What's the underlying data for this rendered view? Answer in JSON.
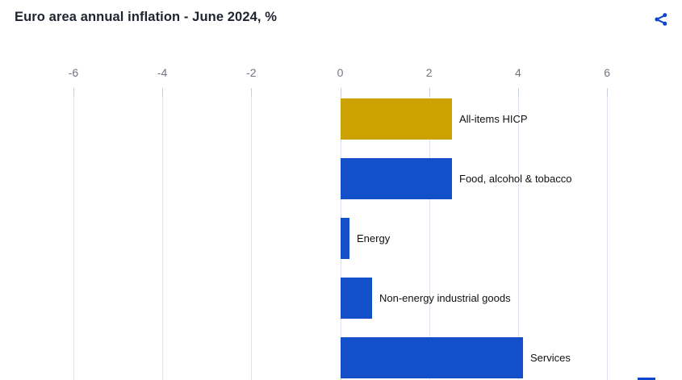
{
  "header": {
    "title": "Euro area annual inflation - June 2024, %"
  },
  "chart_data": {
    "type": "bar",
    "orientation": "horizontal",
    "title": "Euro area annual inflation - June 2024, %",
    "categories": [
      "All-items HICP",
      "Food, alcohol & tobacco",
      "Energy",
      "Non-energy industrial goods",
      "Services"
    ],
    "values": [
      2.5,
      2.5,
      0.2,
      0.7,
      4.1
    ],
    "bar_colors": [
      "#CCA102",
      "#134FC8",
      "#134FC8",
      "#134FC8",
      "#134FC8"
    ],
    "x_ticks": [
      -6,
      -4,
      -2,
      0,
      2,
      4,
      6
    ],
    "xlim": [
      -7.3,
      7.7
    ],
    "grid": true,
    "legend": "none",
    "unit": "%"
  },
  "icons": {
    "share": "share-icon"
  },
  "colors": {
    "bar_blue": "#134FC8",
    "bar_gold": "#CCA102",
    "accent_blue": "#0E47CB",
    "gridline": "#DEE4EF",
    "tickmark": "#C7D1E2",
    "axis_label_text": "#6F7580",
    "title_text": "#1E2430",
    "bar_label_text": "#111111"
  }
}
